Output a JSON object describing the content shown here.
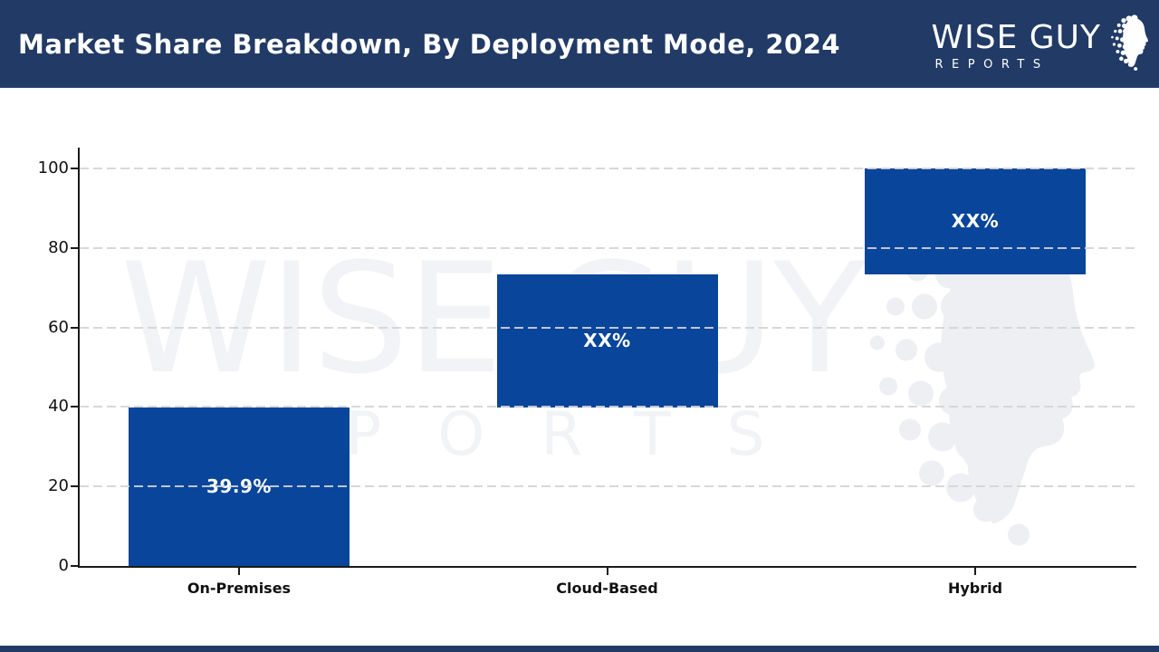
{
  "header": {
    "title": "Market Share Breakdown, By Deployment Mode, 2024",
    "logo": {
      "wordmark": "WISE GUY",
      "subtext": "REPORTS"
    }
  },
  "watermark": {
    "wordmark": "WISE GUY",
    "subtext": "REPORTS"
  },
  "colors": {
    "band_navy": "#213A66",
    "bar_blue": "#08459B",
    "bar_label_white": "#FFFFFF",
    "grid_gray": "#D4D4D4",
    "axis_black": "#1A1A1A",
    "watermark_gray": "#F2F3F6"
  },
  "chart_data": {
    "type": "bar",
    "subtype": "waterfall-cumulative",
    "title": "Market Share Breakdown, By Deployment Mode, 2024",
    "categories": [
      "On-Premises",
      "Cloud-Based",
      "Hybrid"
    ],
    "segments": [
      {
        "category": "On-Premises",
        "start": 0,
        "end": 39.9,
        "value": 39.9,
        "label": "39.9%"
      },
      {
        "category": "Cloud-Based",
        "start": 39.9,
        "end": 73.4,
        "value": 33.5,
        "label": "XX%"
      },
      {
        "category": "Hybrid",
        "start": 73.4,
        "end": 100,
        "value": 26.6,
        "label": "XX%"
      }
    ],
    "xlabel": "",
    "ylabel": "",
    "ylim": [
      0,
      100
    ],
    "yticks": [
      0,
      20,
      40,
      60,
      80,
      100
    ],
    "grid": "horizontal-dashed",
    "legend": "none"
  }
}
